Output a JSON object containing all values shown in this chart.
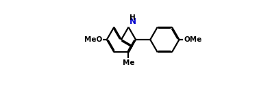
{
  "bg_color": "#ffffff",
  "bond_color": "#000000",
  "N_color": "#0000cd",
  "label_color": "#000000",
  "line_width": 1.6,
  "dbo": 0.013,
  "figsize": [
    3.75,
    1.61
  ],
  "dpi": 100,
  "xlim": [
    0,
    3.75
  ],
  "ylim": [
    0,
    1.61
  ]
}
